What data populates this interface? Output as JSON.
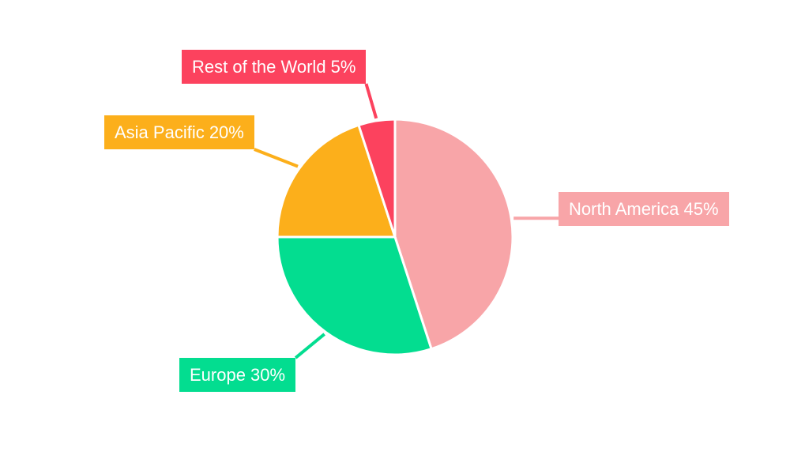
{
  "chart_data": {
    "type": "pie",
    "title": "",
    "background_color": "#FFFFFF",
    "label_style": "callout-boxes-with-leader-lines",
    "label_text_color": "#FFFFFF",
    "slice_gap_color": "#FFFFFF",
    "start_angle_deg": 0,
    "direction": "clockwise",
    "segments": [
      {
        "label": "North America",
        "value": 45,
        "unit": "%",
        "label_text": "North America 45%",
        "color": "#F8A5A8"
      },
      {
        "label": "Europe",
        "value": 30,
        "unit": "%",
        "label_text": "Europe 30%",
        "color": "#03DD90"
      },
      {
        "label": "Asia Pacific",
        "value": 20,
        "unit": "%",
        "label_text": "Asia Pacific 20%",
        "color": "#FCAF1B"
      },
      {
        "label": "Rest of the World",
        "value": 5,
        "unit": "%",
        "label_text": "Rest of the World 5%",
        "color": "#FC425E"
      }
    ]
  }
}
